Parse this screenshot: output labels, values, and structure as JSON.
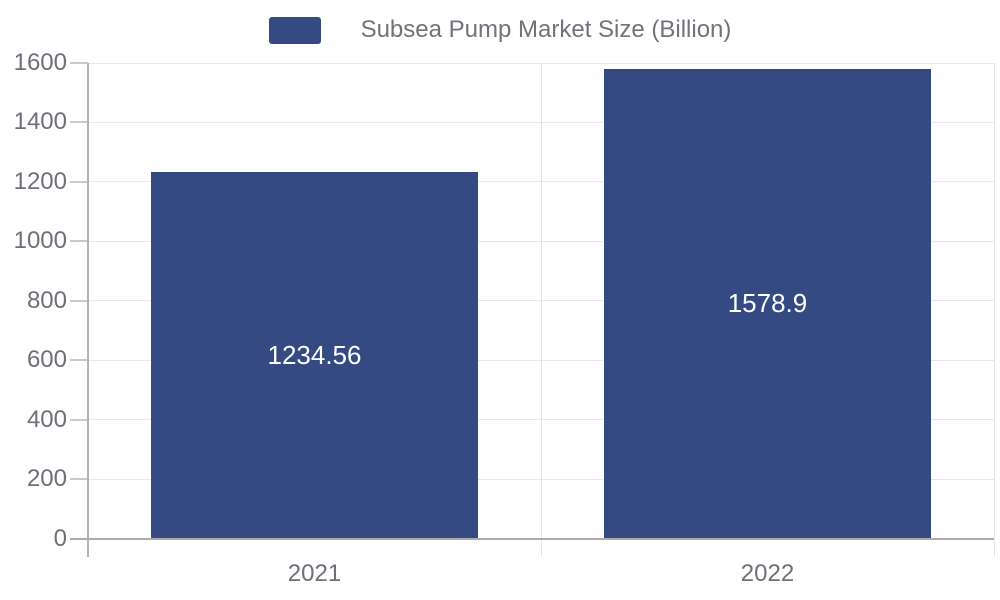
{
  "legend": {
    "label": "Subsea Pump Market Size (Billion)"
  },
  "chart_data": {
    "type": "bar",
    "title": "",
    "categories": [
      "2021",
      "2022"
    ],
    "series": [
      {
        "name": "Subsea Pump Market Size (Billion)",
        "values": [
          1234.56,
          1578.9
        ]
      }
    ],
    "value_labels": [
      "1234.56",
      "1578.9"
    ],
    "xlabel": "",
    "ylabel": "",
    "ylim": [
      0,
      1600
    ],
    "ytick_step": 200,
    "ytick_labels": [
      "0",
      "200",
      "400",
      "600",
      "800",
      "1000",
      "1200",
      "1400",
      "1600"
    ],
    "grid": true,
    "legend_position": "top",
    "colors": {
      "bar": "#354a82",
      "value_label": "#ffffff",
      "axis_label": "#6e7079",
      "legend_text": "#70737a",
      "h_gridline": "#e7e7ea",
      "v_gridline": "#e3e3e9",
      "y_axis_line": "#b3b3b3",
      "x_axis_line": "#acacac"
    }
  }
}
